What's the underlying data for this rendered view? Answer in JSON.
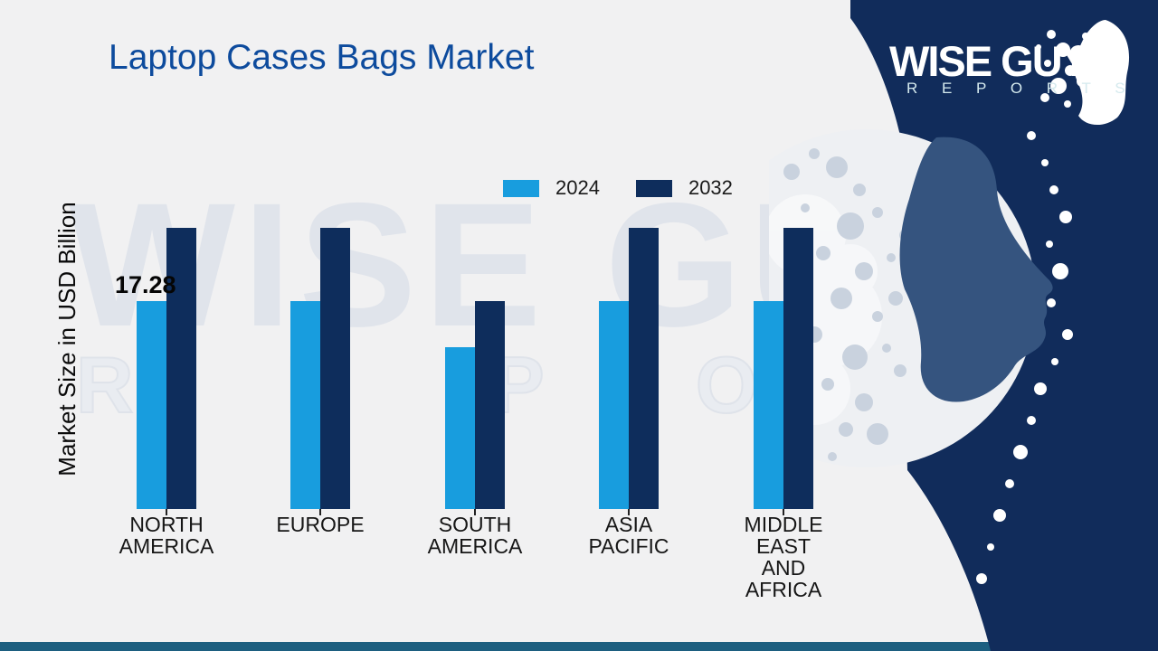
{
  "title": {
    "text": "Laptop Cases Bags Market"
  },
  "logo": {
    "line1": "WISE GUY",
    "line2": "R E P O R T S"
  },
  "watermark": {
    "line1": "WISE GUY",
    "line2": "R E P O R T S"
  },
  "chart_data": {
    "type": "bar",
    "title": "Laptop Cases Bags Market",
    "xlabel": "",
    "ylabel": "Market Size in USD Billion",
    "categories": [
      "NORTH AMERICA",
      "EUROPE",
      "SOUTH AMERICA",
      "ASIA PACIFIC",
      "MIDDLE EAST AND AFRICA"
    ],
    "series": [
      {
        "name": "2024",
        "color": "#189dde",
        "values": [
          17.28,
          17.28,
          13.45,
          17.28,
          17.28
        ]
      },
      {
        "name": "2032",
        "color": "#0e2d5c",
        "values": [
          23.37,
          23.37,
          17.28,
          23.37,
          23.37
        ]
      }
    ],
    "data_labels": [
      {
        "series": "2024",
        "category": "NORTH AMERICA",
        "text": "17.28"
      }
    ],
    "legend_position": "top-center",
    "grid": false,
    "ylim": [
      0,
      26
    ]
  },
  "colors": {
    "background": "#f1f1f2",
    "title": "#0d4b9d",
    "bar_2024": "#189dde",
    "bar_2032": "#0e2d5c",
    "footer_bar": "#1d5f80",
    "logo_navy": "#112c5b",
    "face_silhouette": "#35547f",
    "watermark": "#e0e4eb"
  }
}
